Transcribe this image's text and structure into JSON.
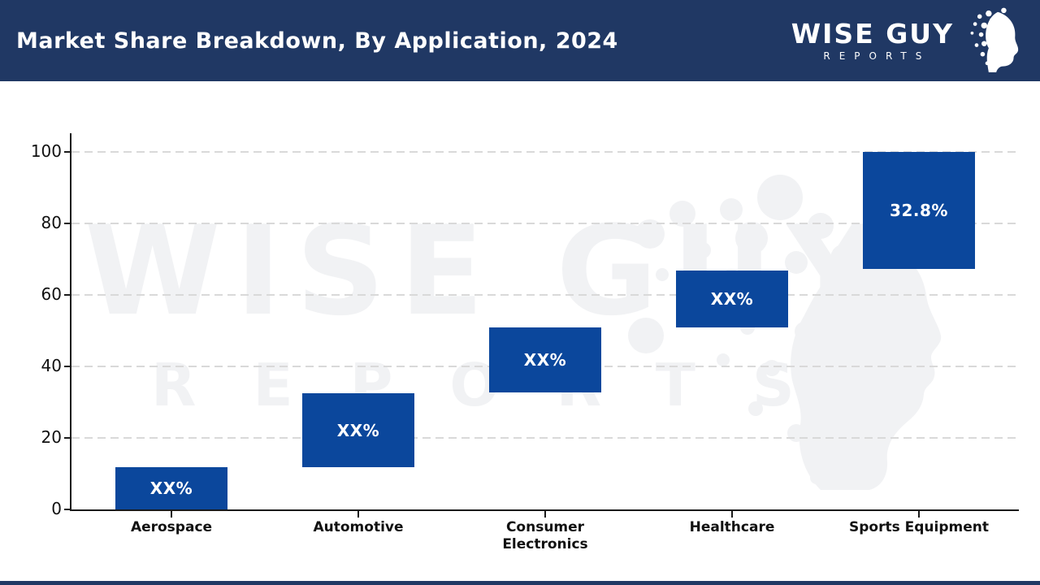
{
  "header": {
    "title": "Market Share Breakdown, By Application, 2024",
    "logo": {
      "line1": "WISE GUY",
      "line2": "REPORTS"
    }
  },
  "watermark": {
    "line1": "WISE GUY",
    "line2": "REPORTS"
  },
  "colors": {
    "header_bg": "#203864",
    "footer_bg": "#203864",
    "bar_fill": "#0b479c",
    "bar_label_text": "#ffffff",
    "grid_line": "#d9d9d9",
    "axis_line": "#1a1a1a",
    "tick_label": "#111111",
    "title_text": "#ffffff",
    "watermark": "#f1f2f4"
  },
  "chart_data": {
    "type": "bar",
    "subtype": "waterfall",
    "title": "Market Share Breakdown, By Application, 2024",
    "xlabel": "",
    "ylabel": "",
    "ylim": [
      0,
      100
    ],
    "yticks": [
      0,
      20,
      40,
      60,
      80,
      100
    ],
    "grid": "horizontal-dashed",
    "legend": "none",
    "categories": [
      "Aerospace",
      "Automotive",
      "Consumer\nElectronics",
      "Healthcare",
      "Sports Equipment"
    ],
    "segments": [
      {
        "category": "Aerospace",
        "start": 0,
        "end": 11.8,
        "height": 11.8,
        "label": "XX%"
      },
      {
        "category": "Automotive",
        "start": 11.8,
        "end": 32.5,
        "height": 20.7,
        "label": "XX%"
      },
      {
        "category": "Consumer Electronics",
        "start": 32.6,
        "end": 50.8,
        "height": 18.2,
        "label": "XX%"
      },
      {
        "category": "Healthcare",
        "start": 51.0,
        "end": 66.9,
        "height": 15.9,
        "label": "XX%"
      },
      {
        "category": "Sports Equipment",
        "start": 67.2,
        "end": 100.0,
        "height": 32.8,
        "label": "32.8%"
      }
    ]
  }
}
